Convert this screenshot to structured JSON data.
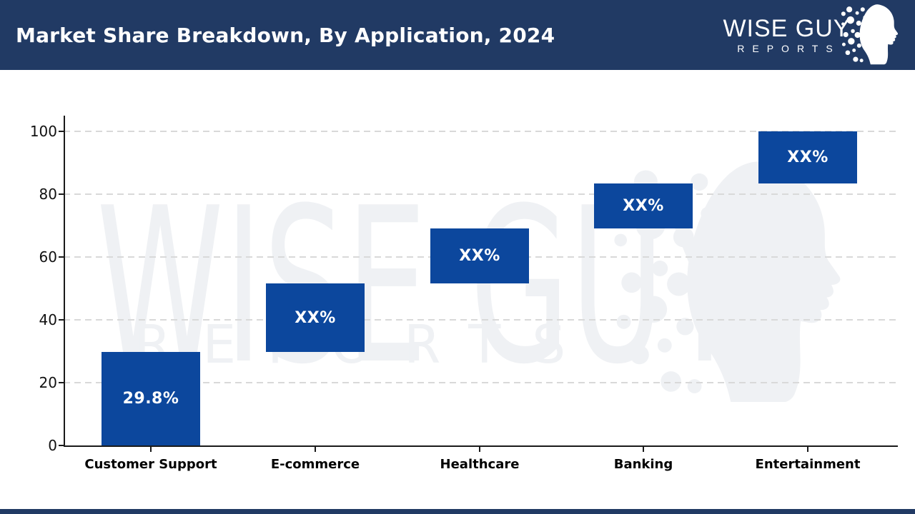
{
  "header": {
    "title": "Market Share Breakdown, By Application, 2024",
    "bg_color": "#213a64",
    "logo": {
      "line1": "WISE GUY",
      "line2": "REPORTS"
    }
  },
  "watermark": {
    "line1": "WISE GUY",
    "line2": "REPORTS"
  },
  "footer": {
    "bg_color": "#213a64"
  },
  "chart_data": {
    "type": "bar",
    "subtype": "floating-waterfall",
    "title": "Market Share Breakdown, By Application, 2024",
    "categories": [
      "Customer Support",
      "E-commerce",
      "Healthcare",
      "Banking",
      "Entertainment"
    ],
    "bars": [
      {
        "category": "Customer Support",
        "start": 0,
        "end": 29.8,
        "label": "29.8%"
      },
      {
        "category": "E-commerce",
        "start": 29.8,
        "end": 51.5,
        "label": "XX%"
      },
      {
        "category": "Healthcare",
        "start": 51.5,
        "end": 69.0,
        "label": "XX%"
      },
      {
        "category": "Banking",
        "start": 69.0,
        "end": 83.5,
        "label": "XX%"
      },
      {
        "category": "Entertainment",
        "start": 83.5,
        "end": 100,
        "label": "XX%"
      }
    ],
    "ylabel": "",
    "xlabel": "",
    "yticks": [
      0,
      20,
      40,
      60,
      80,
      100
    ],
    "ylim": [
      0,
      105
    ],
    "bar_color": "#0c479d",
    "bar_label_color": "#ffffff",
    "grid": "dashed-horizontal-gray",
    "legend": "none"
  }
}
